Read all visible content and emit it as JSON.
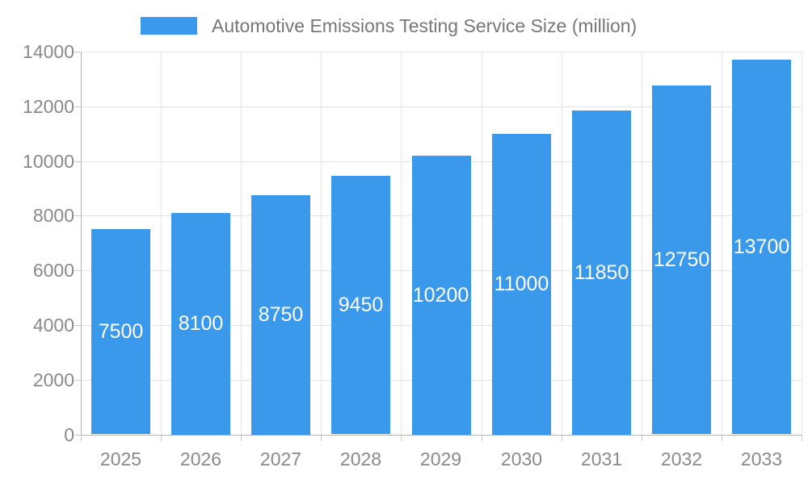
{
  "chart_data": {
    "type": "bar",
    "title": "Automotive Emissions Testing Service Size (million)",
    "legend": {
      "label": "Automotive Emissions Testing Service Size (million)"
    },
    "categories": [
      "2025",
      "2026",
      "2027",
      "2028",
      "2029",
      "2030",
      "2031",
      "2032",
      "2033"
    ],
    "values": [
      7500,
      8100,
      8750,
      9450,
      10200,
      11000,
      11850,
      12750,
      13700
    ],
    "xlabel": "",
    "ylabel": "",
    "ylim": [
      0,
      14000
    ],
    "yticks": [
      0,
      2000,
      4000,
      6000,
      8000,
      10000,
      12000,
      14000
    ],
    "grid": true,
    "legend_position": "top-center",
    "colors": {
      "bar": "#3b99ec",
      "value_label": "#ffffff",
      "axis_label": "#8a8a8a",
      "legend_text": "#777777",
      "grid_line": "#e4e4e4",
      "axis_line": "#b3b3b3",
      "tick": "#c9c9c9",
      "background": "#ffffff"
    }
  }
}
